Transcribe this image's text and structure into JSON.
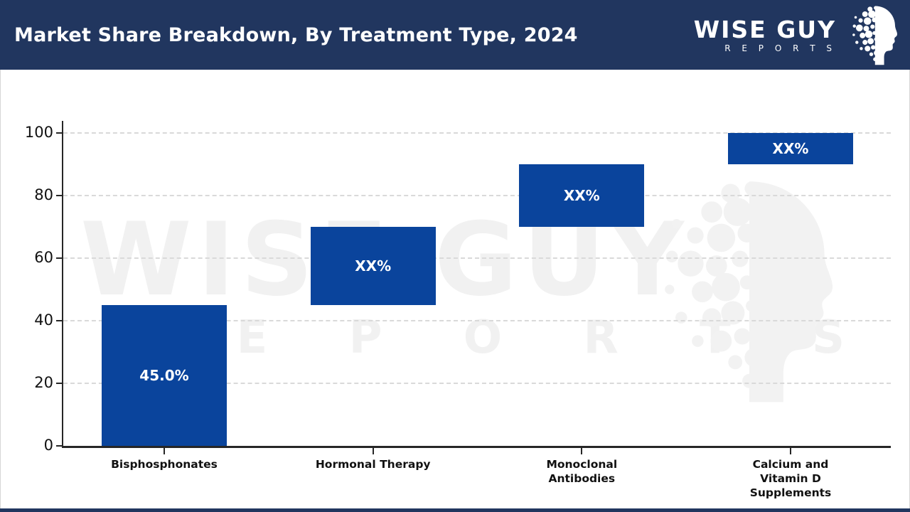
{
  "header": {
    "title": "Market Share Breakdown, By Treatment Type, 2024",
    "logo": {
      "line1": "WISE GUY",
      "line2": "R E P O R T S"
    }
  },
  "watermark": {
    "line1": "WISE GUY",
    "line2": "R E P O R T S"
  },
  "chart_data": {
    "type": "bar",
    "variant": "waterfall",
    "title": "Market Share Breakdown, By Treatment Type, 2024",
    "categories": [
      "Bisphosphonates",
      "Hormonal Therapy",
      "Monoclonal Antibodies",
      "Calcium and Vitamin D Supplements"
    ],
    "bars": [
      {
        "category": "Bisphosphonates",
        "lines": [
          "Bisphosphonates"
        ],
        "start": 0,
        "end": 45,
        "value_label": "45.0%"
      },
      {
        "category": "Hormonal Therapy",
        "lines": [
          "Hormonal Therapy"
        ],
        "start": 45,
        "end": 70,
        "value_label": "XX%"
      },
      {
        "category": "Monoclonal Antibodies",
        "lines": [
          "Monoclonal",
          "Antibodies"
        ],
        "start": 70,
        "end": 90,
        "value_label": "XX%"
      },
      {
        "category": "Calcium and Vitamin D Supplements",
        "lines": [
          "Calcium and",
          "Vitamin D",
          "Supplements"
        ],
        "start": 90,
        "end": 100,
        "value_label": "XX%"
      }
    ],
    "yticks": [
      0,
      20,
      40,
      60,
      80,
      100
    ],
    "ylim": [
      0,
      105
    ],
    "xlabel": "",
    "ylabel": "",
    "grid": "horizontal-dashed",
    "legend": "none",
    "colors": {
      "bar": "#0a449c",
      "bar_label": "#ffffff",
      "grid": "#d9d9d9",
      "axis": "#262626",
      "header_bg": "#21365f",
      "footer_bg": "#21365f",
      "watermark": "#f1f1f1",
      "title_text": "#ffffff"
    }
  }
}
